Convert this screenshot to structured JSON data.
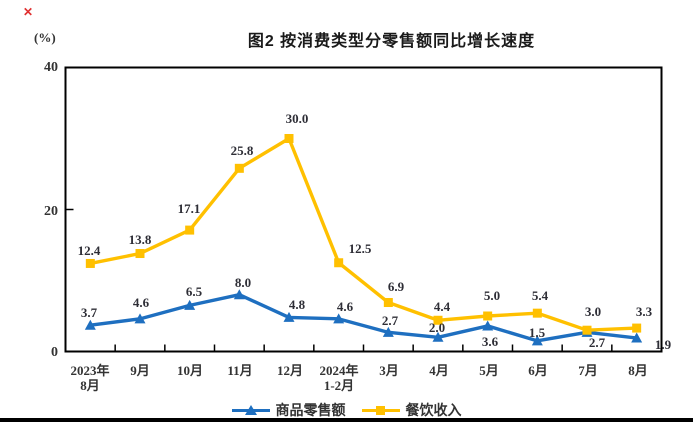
{
  "corner_mark": "✕",
  "title": "图2 按消费类型分零售额同比增长速度",
  "y_axis": {
    "unit": "(%)",
    "ticks": [
      "40",
      "20",
      "0"
    ]
  },
  "x_axis": {
    "labels": [
      {
        "l1": "2023年",
        "l2": "8月"
      },
      {
        "l1": "9月",
        "l2": ""
      },
      {
        "l1": "10月",
        "l2": ""
      },
      {
        "l1": "11月",
        "l2": ""
      },
      {
        "l1": "12月",
        "l2": ""
      },
      {
        "l1": "2024年",
        "l2": "1-2月"
      },
      {
        "l1": "3月",
        "l2": ""
      },
      {
        "l1": "4月",
        "l2": ""
      },
      {
        "l1": "5月",
        "l2": ""
      },
      {
        "l1": "6月",
        "l2": ""
      },
      {
        "l1": "7月",
        "l2": ""
      },
      {
        "l1": "8月",
        "l2": ""
      }
    ]
  },
  "chart_data": {
    "type": "line",
    "title": "图2 按消费类型分零售额同比增长速度",
    "ylabel": "(%)",
    "ylim": [
      0,
      40
    ],
    "yticks": [
      0,
      20,
      40
    ],
    "grid": false,
    "legend_position": "bottom",
    "categories": [
      "2023年8月",
      "9月",
      "10月",
      "11月",
      "12月",
      "2024年1-2月",
      "3月",
      "4月",
      "5月",
      "6月",
      "7月",
      "8月"
    ],
    "series": [
      {
        "name": "商品零售额",
        "color": "#1E6FC0",
        "marker": "triangle",
        "values": [
          3.7,
          4.6,
          6.5,
          8.0,
          4.8,
          4.6,
          2.7,
          2.0,
          3.6,
          1.5,
          2.7,
          1.9
        ],
        "labels": [
          "3.7",
          "4.6",
          "6.5",
          "8.0",
          "4.8",
          "4.6",
          "2.7",
          "2.0",
          "3.6",
          "1.5",
          "2.7",
          "1.9"
        ]
      },
      {
        "name": "餐饮收入",
        "color": "#FFC000",
        "marker": "square",
        "values": [
          12.4,
          13.8,
          17.1,
          25.8,
          30.0,
          12.5,
          6.9,
          4.4,
          5.0,
          5.4,
          3.0,
          3.3
        ],
        "labels": [
          "12.4",
          "13.8",
          "17.1",
          "25.8",
          "30.0",
          "12.5",
          "6.9",
          "4.4",
          "5.0",
          "5.4",
          "3.0",
          "3.3"
        ]
      }
    ]
  },
  "legend": {
    "items": [
      {
        "label": "商品零售额"
      },
      {
        "label": "餐饮收入"
      }
    ]
  }
}
